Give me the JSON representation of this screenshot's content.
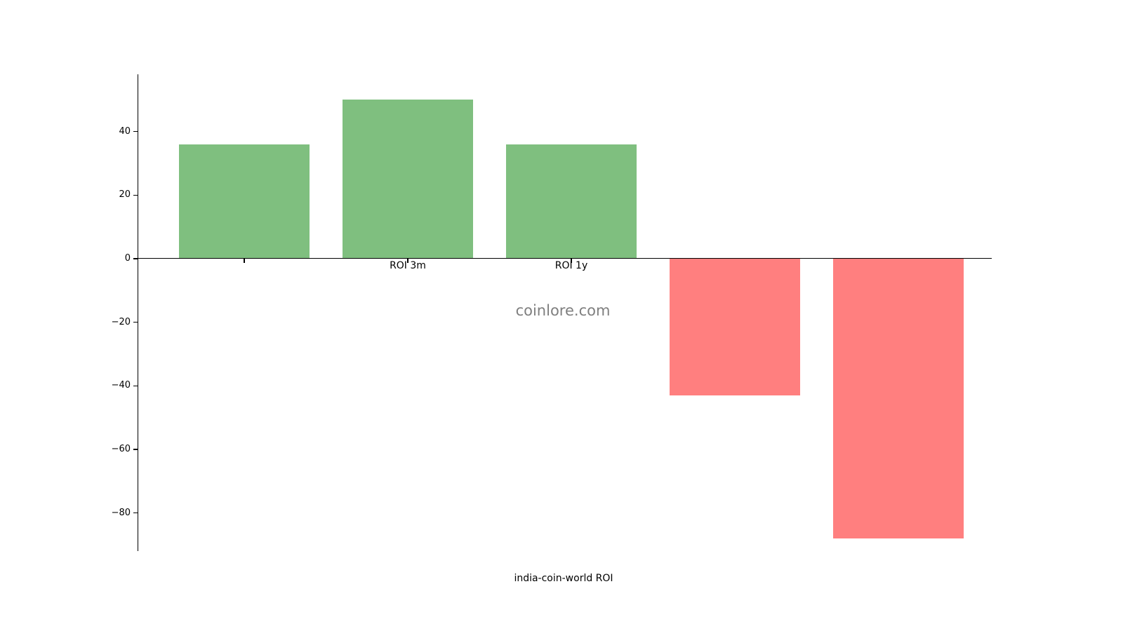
{
  "watermark_text": "coinlore.com",
  "footer_title": "india-coin-world ROI",
  "chart_data": {
    "type": "bar",
    "title": "india-coin-world ROI",
    "xlabel": "",
    "ylabel": "",
    "categories": [
      "",
      "ROI 3m",
      "ROI 1y",
      "",
      ""
    ],
    "values": [
      36,
      50,
      36,
      -43,
      -88
    ],
    "bar_colors": [
      "#7fbf7f",
      "#7fbf7f",
      "#7fbf7f",
      "#ff7f7f",
      "#ff7f7f"
    ],
    "positive_color": "#7fbf7f",
    "negative_color": "#ff7f7f",
    "axis_color": "#000000",
    "watermark": "coinlore.com",
    "watermark_color": "#7f7f7f",
    "yticks": [
      40,
      20,
      0,
      -20,
      -40,
      -60,
      -80
    ],
    "ytick_labels": [
      "40",
      "20",
      "0",
      "−20",
      "−40",
      "−60",
      "−80"
    ],
    "ylim": [
      -92,
      58
    ],
    "grid": false,
    "legend": "none",
    "visible_xtick_indices": [
      0,
      1,
      2
    ],
    "baseline": 0
  }
}
